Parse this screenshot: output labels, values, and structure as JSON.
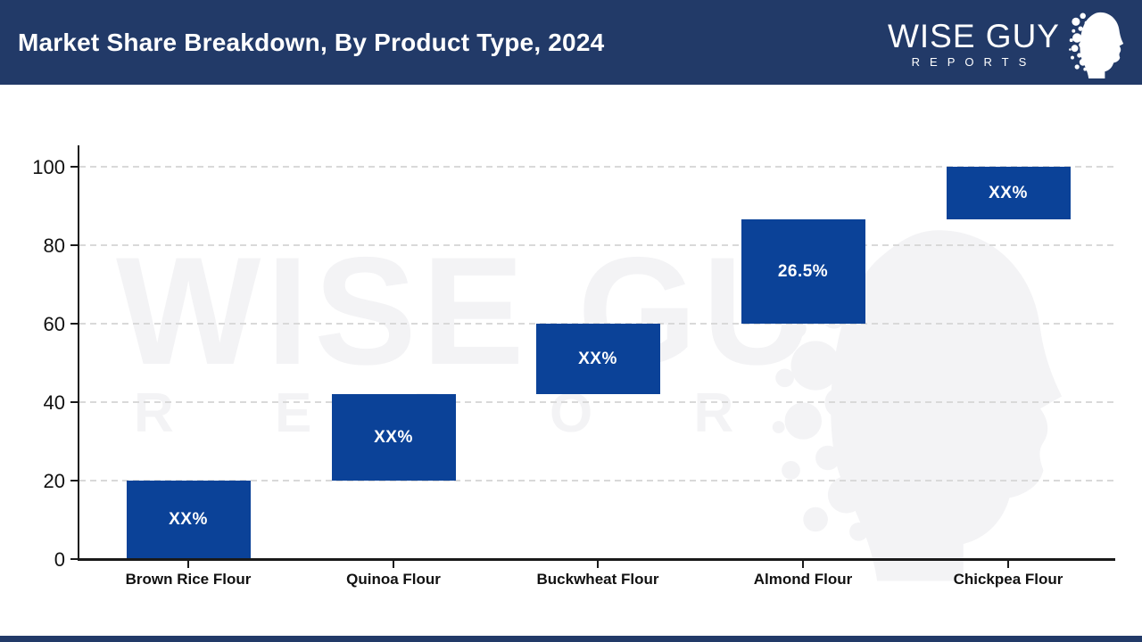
{
  "header": {
    "title": "Market Share Breakdown, By Product Type, 2024",
    "logo": {
      "line1": "WISE GUY",
      "line2": "REPORTS"
    }
  },
  "watermark": {
    "line1": "WISE GUY",
    "line2": "R E P O R T S"
  },
  "chart_data": {
    "type": "bar",
    "variant": "waterfall",
    "title": "Market Share Breakdown, By Product Type, 2024",
    "categories": [
      "Brown Rice Flour",
      "Quinoa Flour",
      "Buckwheat Flour",
      "Almond Flour",
      "Chickpea Flour"
    ],
    "bars": [
      {
        "category": "Brown Rice Flour",
        "start": 0,
        "end": 20,
        "value": 20,
        "label": "XX%"
      },
      {
        "category": "Quinoa Flour",
        "start": 20,
        "end": 42,
        "value": 22,
        "label": "XX%"
      },
      {
        "category": "Buckwheat Flour",
        "start": 42,
        "end": 60,
        "value": 18,
        "label": "XX%"
      },
      {
        "category": "Almond Flour",
        "start": 60,
        "end": 86.5,
        "value": 26.5,
        "label": "26.5%"
      },
      {
        "category": "Chickpea Flour",
        "start": 86.5,
        "end": 100,
        "value": 13.5,
        "label": "XX%"
      }
    ],
    "yticks": [
      0,
      20,
      40,
      60,
      80,
      100
    ],
    "ylim": [
      0,
      105
    ],
    "xlabel": "",
    "ylabel": "",
    "grid": "horizontal-dashed",
    "legend": "none",
    "bar_color": "#0b4298",
    "bar_label_color": "#ffffff"
  },
  "colors": {
    "header_bg": "#223a68",
    "footer_bg": "#223a68",
    "bar": "#0b4298",
    "grid": "#d9d9d9",
    "axis": "#1a1a1a",
    "watermark": "#f3f3f5"
  }
}
